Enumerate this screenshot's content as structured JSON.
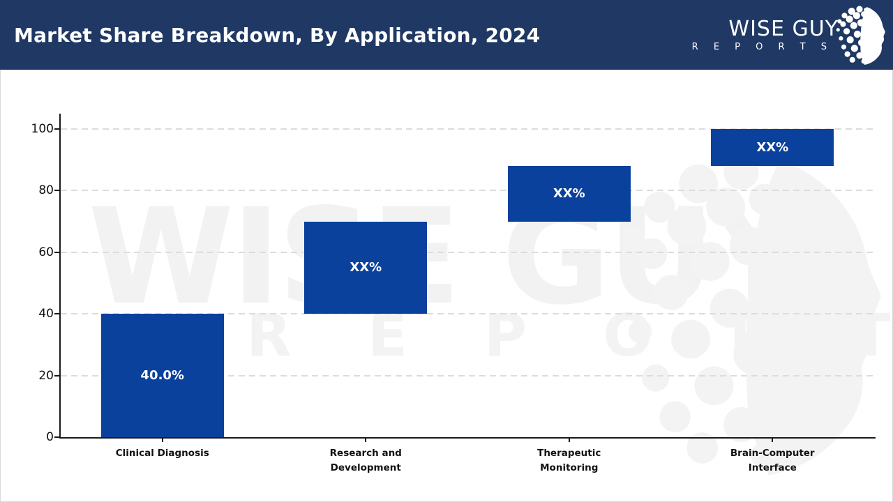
{
  "header": {
    "title": "Market Share Breakdown, By Application, 2024",
    "bg_color": "#1f3864",
    "brand": {
      "wordmark": "WISE GUY",
      "subline": "R E P O R T S"
    }
  },
  "watermark": {
    "line1": "WISE GUY",
    "line2": "R E P O R T S"
  },
  "chart_data": {
    "type": "bar",
    "subtype": "floating-waterfall",
    "title": "Market Share Breakdown, By Application, 2024",
    "xlabel": "",
    "ylabel": "",
    "ylim": [
      0,
      100
    ],
    "yticks": [
      0,
      20,
      40,
      60,
      80,
      100
    ],
    "grid": "horizontal-dashed",
    "legend": "none",
    "bar_color": "#09419c",
    "categories": [
      "Clinical Diagnosis",
      "Research and\nDevelopment",
      "Therapeutic\nMonitoring",
      "Brain-Computer\nInterface"
    ],
    "segments": [
      {
        "category": "Clinical Diagnosis",
        "start": 0,
        "end": 40,
        "value": 40,
        "label": "40.0%"
      },
      {
        "category": "Research and\nDevelopment",
        "start": 40,
        "end": 70,
        "value": 30,
        "label": "XX%"
      },
      {
        "category": "Therapeutic\nMonitoring",
        "start": 70,
        "end": 88,
        "value": 18,
        "label": "XX%"
      },
      {
        "category": "Brain-Computer\nInterface",
        "start": 88,
        "end": 100,
        "value": 12,
        "label": "XX%"
      }
    ]
  }
}
